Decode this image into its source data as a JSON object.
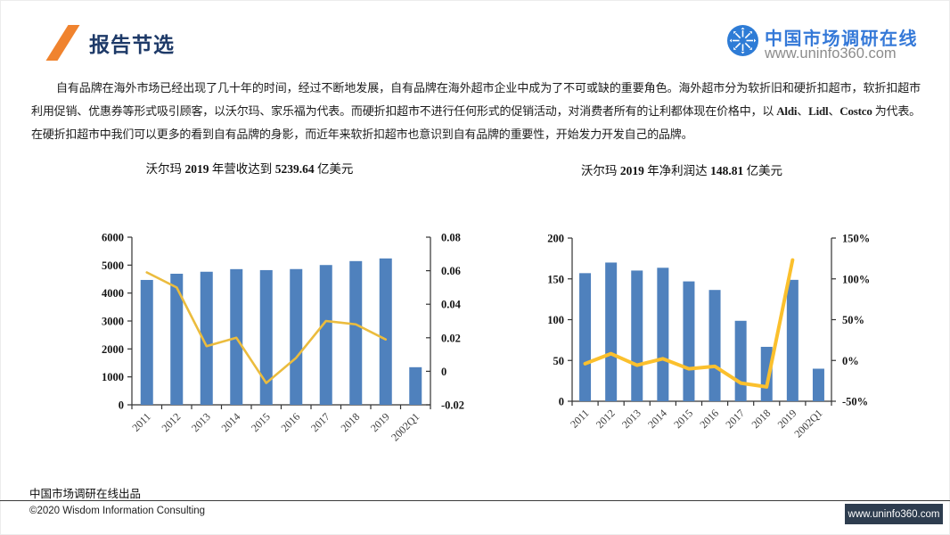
{
  "header": {
    "title": "报告节选"
  },
  "brand": {
    "name": "中国市场调研在线",
    "url": "www.uninfo360.com",
    "icon": "snowflake-arrows-icon",
    "icon_color": "#2E7CD6"
  },
  "paragraph": {
    "segments": [
      {
        "text": "自有品牌在海外市场已经出现了几十年的时间，经过不断地发展，自有品牌在海外超市企业中成为了不可或缺的重要角色。海外超市分为软折旧和硬折扣超市，软折扣超市利用促销、优惠券等形式吸引顾客，以沃尔玛、家乐福为代表。而硬折扣超市不进行任何形式的促销活动，对消费者所有的让利都体现在价格中，以 ",
        "bold": false
      },
      {
        "text": "Aldi",
        "bold": true
      },
      {
        "text": "、",
        "bold": false
      },
      {
        "text": "Lidl",
        "bold": true
      },
      {
        "text": "、",
        "bold": false
      },
      {
        "text": "Costco",
        "bold": true
      },
      {
        "text": " 为代表。在硬折扣超市中我们可以更多的看到自有品牌的身影，而近年来软折扣超市也意识到自有品牌的重要性，开始发力开发自己的品牌。",
        "bold": false
      }
    ]
  },
  "chart_data": [
    {
      "type": "bar+line",
      "title_segments": [
        {
          "text": "沃尔玛 ",
          "bold": false
        },
        {
          "text": "2019",
          "bold": true
        },
        {
          "text": " 年营收达到 ",
          "bold": false
        },
        {
          "text": "5239.64",
          "bold": true
        },
        {
          "text": " 亿美元",
          "bold": false
        }
      ],
      "categories": [
        "2011",
        "2012",
        "2013",
        "2014",
        "2015",
        "2016",
        "2017",
        "2018",
        "2019",
        "2002Q1"
      ],
      "bars": [
        4469.5,
        4691.6,
        4762.9,
        4856.5,
        4821.3,
        4858.7,
        5003.4,
        5144.1,
        5239.6,
        1346.2
      ],
      "line": [
        0.059,
        0.05,
        0.015,
        0.02,
        -0.007,
        0.008,
        0.03,
        0.028,
        0.019
      ],
      "left_axis": {
        "min": 0,
        "max": 6000,
        "tick_labels": [
          "0",
          "1000",
          "2000",
          "3000",
          "4000",
          "5000",
          "6000"
        ]
      },
      "right_axis": {
        "min": -0.02,
        "max": 0.08,
        "tick_labels": [
          "-0.02",
          "0",
          "0.02",
          "0.04",
          "0.06",
          "0.08"
        ]
      },
      "bar_color": "#4F81BD",
      "line_color": "#EBBC3E",
      "legend": "none",
      "grid": "off"
    },
    {
      "type": "bar+line",
      "title_segments": [
        {
          "text": "沃尔玛 ",
          "bold": false
        },
        {
          "text": "2019",
          "bold": true
        },
        {
          "text": " 年净利润达 ",
          "bold": false
        },
        {
          "text": "148.81",
          "bold": true
        },
        {
          "text": " 亿美元",
          "bold": false
        }
      ],
      "categories": [
        "2011",
        "2012",
        "2013",
        "2014",
        "2015",
        "2016",
        "2017",
        "2018",
        "2019",
        "2002Q1"
      ],
      "bars": [
        157.0,
        170.0,
        160.2,
        163.6,
        146.9,
        136.4,
        98.6,
        66.7,
        148.8,
        39.9
      ],
      "line": [
        -0.04,
        0.083,
        -0.058,
        0.021,
        -0.102,
        -0.072,
        -0.277,
        -0.324,
        1.231
      ],
      "left_axis": {
        "min": 0,
        "max": 200,
        "tick_labels": [
          "0",
          "50",
          "100",
          "150",
          "200"
        ]
      },
      "right_axis": {
        "min": -0.5,
        "max": 1.5,
        "tick_labels": [
          "-50%",
          "0%",
          "50%",
          "100%",
          "150%"
        ]
      },
      "bar_color": "#4F81BD",
      "line_color": "#FBC02D",
      "legend": "none",
      "grid": "off"
    }
  ],
  "footer": {
    "producer": "中国市场调研在线出品",
    "copyright": "©2020 Wisdom Information Consulting",
    "badge_url": "www.uninfo360.com"
  }
}
